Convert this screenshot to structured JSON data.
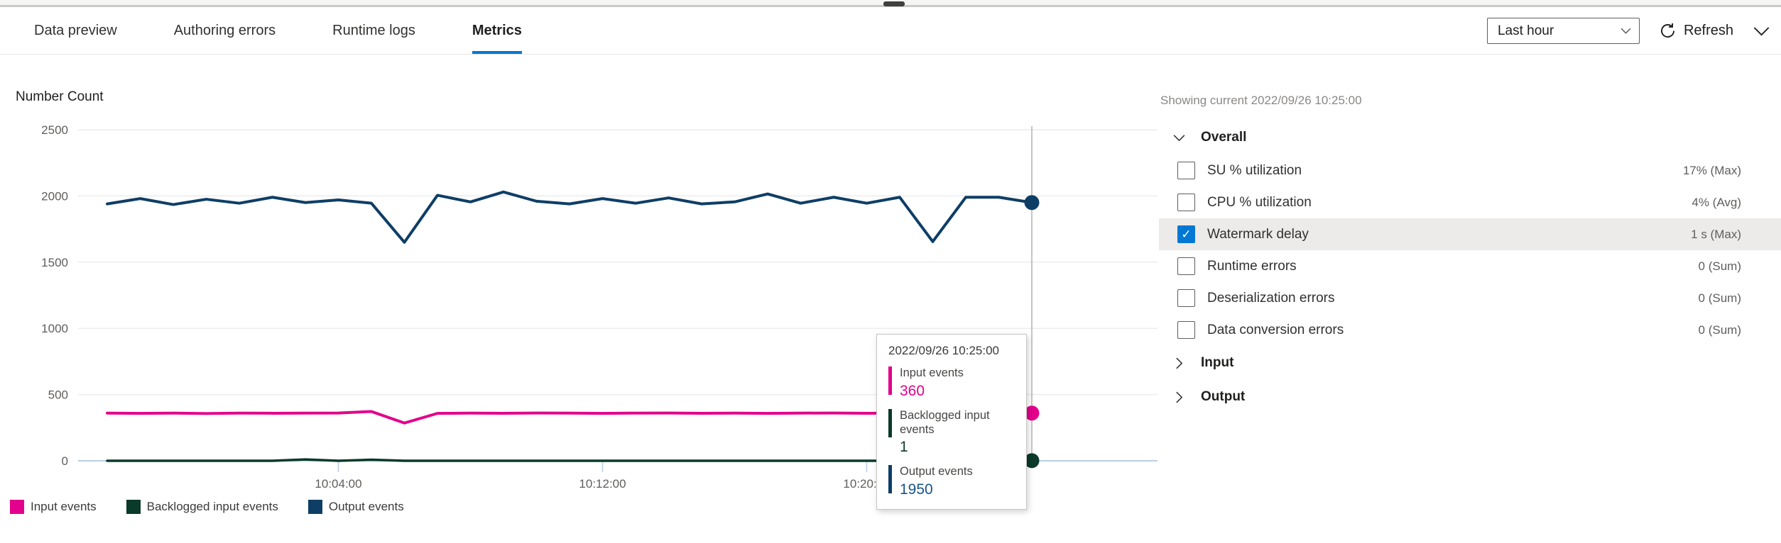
{
  "top": {
    "tabs": [
      {
        "label": "Data preview",
        "active": false
      },
      {
        "label": "Authoring errors",
        "active": false
      },
      {
        "label": "Runtime logs",
        "active": false
      },
      {
        "label": "Metrics",
        "active": true
      }
    ],
    "time_range_value": "Last hour",
    "refresh_label": "Refresh"
  },
  "chart": {
    "title": "Number Count"
  },
  "chart_data": {
    "type": "line",
    "title": "Number Count",
    "x": [
      "09:57:00",
      "09:58:00",
      "09:59:00",
      "10:00:00",
      "10:01:00",
      "10:02:00",
      "10:03:00",
      "10:04:00",
      "10:05:00",
      "10:06:00",
      "10:07:00",
      "10:08:00",
      "10:09:00",
      "10:10:00",
      "10:11:00",
      "10:12:00",
      "10:13:00",
      "10:14:00",
      "10:15:00",
      "10:16:00",
      "10:17:00",
      "10:18:00",
      "10:19:00",
      "10:20:00",
      "10:21:00",
      "10:22:00",
      "10:23:00",
      "10:24:00",
      "10:25:00"
    ],
    "x_tick_labels": [
      "10:04:00",
      "10:12:00",
      "10:20:00"
    ],
    "x_tick_indices": [
      7,
      15,
      23
    ],
    "ylim": [
      0,
      2500
    ],
    "y_ticks": [
      0,
      500,
      1000,
      1500,
      2000,
      2500
    ],
    "grid": true,
    "legend_position": "bottom-left",
    "hover_index": 28,
    "hover_time": "2022/09/26 10:25:00",
    "series": [
      {
        "name": "Input events",
        "color": "#e3008c",
        "values": [
          360,
          358,
          360,
          357,
          360,
          359,
          360,
          361,
          372,
          285,
          358,
          360,
          359,
          361,
          360,
          358,
          360,
          361,
          359,
          360,
          358,
          360,
          361,
          359,
          360,
          358,
          360,
          360,
          360
        ]
      },
      {
        "name": "Backlogged input events",
        "color": "#0a3a2a",
        "values": [
          0,
          0,
          0,
          0,
          0,
          0,
          10,
          0,
          8,
          0,
          0,
          0,
          0,
          0,
          0,
          0,
          0,
          0,
          0,
          0,
          0,
          0,
          0,
          0,
          0,
          0,
          0,
          0,
          1
        ]
      },
      {
        "name": "Output events",
        "color": "#0e3e66",
        "values": [
          1940,
          1980,
          1935,
          1975,
          1945,
          1990,
          1950,
          1970,
          1945,
          1650,
          2005,
          1955,
          2030,
          1960,
          1940,
          1980,
          1945,
          1985,
          1940,
          1955,
          2015,
          1945,
          1990,
          1945,
          1990,
          1655,
          1990,
          1990,
          1950
        ]
      }
    ]
  },
  "tooltip": {
    "title": "2022/09/26 10:25:00",
    "rows": [
      {
        "label": "Input events",
        "value": "360",
        "value_color": "#e3008c"
      },
      {
        "label": "Backlogged input events",
        "value": "1",
        "value_color": "#123a2e"
      },
      {
        "label": "Output events",
        "value": "1950",
        "value_color": "#19538a"
      }
    ]
  },
  "panel": {
    "showing_current": "Showing current 2022/09/26 10:25:00",
    "overall_label": "Overall",
    "metrics": [
      {
        "label": "SU % utilization",
        "value": "17% (Max)",
        "checked": false
      },
      {
        "label": "CPU % utilization",
        "value": "4% (Avg)",
        "checked": false
      },
      {
        "label": "Watermark delay",
        "value": "1 s (Max)",
        "checked": true
      },
      {
        "label": "Runtime errors",
        "value": "0 (Sum)",
        "checked": false
      },
      {
        "label": "Deserialization errors",
        "value": "0 (Sum)",
        "checked": false
      },
      {
        "label": "Data conversion errors",
        "value": "0 (Sum)",
        "checked": false
      }
    ],
    "input_label": "Input",
    "output_label": "Output"
  }
}
